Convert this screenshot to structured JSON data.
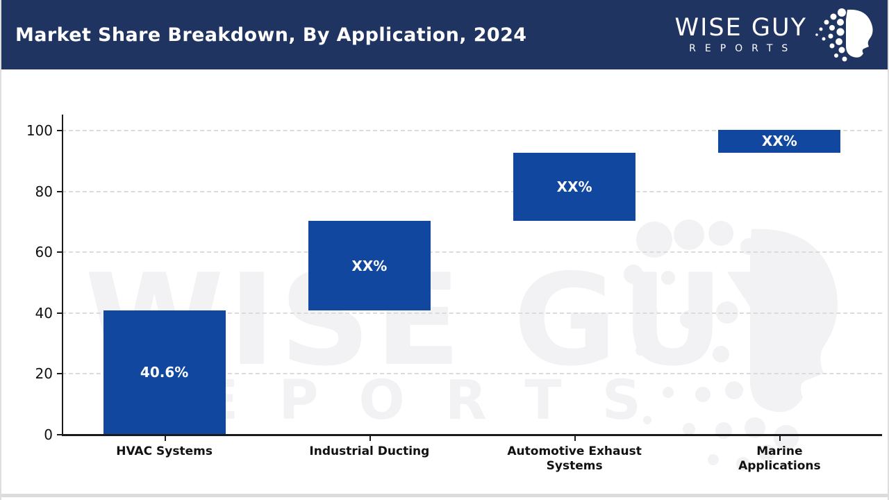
{
  "header": {
    "title": "Market Share Breakdown, By Application, 2024",
    "logo": {
      "line1": "WISE GUY",
      "line2": "REPORTS"
    }
  },
  "watermark": {
    "line1": "WISE GUY",
    "line2": "REPORTS"
  },
  "colors": {
    "header_bg": "#203462",
    "bar": "#11479e",
    "grid": "#dbdbdb",
    "axis": "#1a1a1a",
    "bar_label": "#ffffff",
    "watermark": "#f2f2f5"
  },
  "chart_data": {
    "type": "bar",
    "subtype": "waterfall",
    "title": "Market Share Breakdown, By Application, 2024",
    "categories": [
      "HVAC Systems",
      "Industrial Ducting",
      "Automotive Exhaust Systems",
      "Marine Applications"
    ],
    "category_lines": [
      [
        "HVAC Systems"
      ],
      [
        "Industrial Ducting"
      ],
      [
        "Automotive Exhaust",
        "Systems"
      ],
      [
        "Marine",
        "Applications"
      ]
    ],
    "segments": [
      {
        "category": "HVAC Systems",
        "start": 0,
        "end": 40.6,
        "label": "40.6%"
      },
      {
        "category": "Industrial Ducting",
        "start": 40.6,
        "end": 70,
        "label": "XX%"
      },
      {
        "category": "Automotive Exhaust Systems",
        "start": 70,
        "end": 92.5,
        "label": "XX%"
      },
      {
        "category": "Marine Applications",
        "start": 92.5,
        "end": 100,
        "label": "XX%"
      }
    ],
    "yticks": [
      0,
      20,
      40,
      60,
      80,
      100
    ],
    "ylim": [
      0,
      105
    ],
    "xlabel": "",
    "ylabel": "",
    "grid": "horizontal-dashed",
    "legend": "none"
  }
}
